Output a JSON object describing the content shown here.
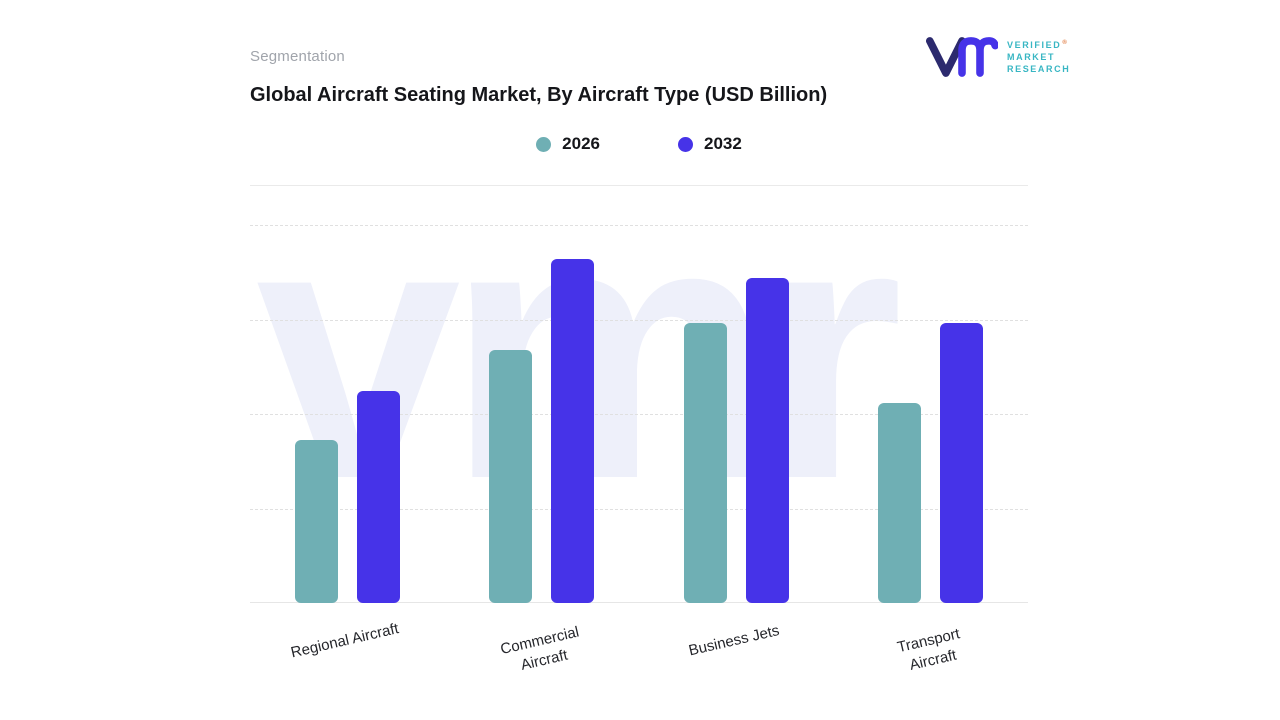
{
  "header": {
    "eyebrow": "Segmentation",
    "title": "Global Aircraft Seating Market, By Aircraft Type (USD Billion)"
  },
  "logo": {
    "mark": "vm-monogram",
    "lines": [
      "VERIFIED",
      "MARKET",
      "RESEARCH"
    ],
    "registered": "®",
    "teal": "#38b6c3",
    "navy": "#2c2a6e",
    "indigo": "#4633e8"
  },
  "legend": [
    {
      "label": "2026",
      "color": "#6fafb4"
    },
    {
      "label": "2032",
      "color": "#4633e8"
    }
  ],
  "watermark": "vmr",
  "chart_data": {
    "type": "bar",
    "title": "Global Aircraft Seating Market, By Aircraft Type (USD Billion)",
    "units": "USD Billion",
    "categories": [
      "Regional Aircraft",
      "Commercial Aircraft",
      "Business Jets",
      "Transport Aircraft"
    ],
    "tick_label_lines": [
      [
        "Regional Aircraft"
      ],
      [
        "Commercial",
        "Aircraft"
      ],
      [
        "Business Jets"
      ],
      [
        "Transport",
        "Aircraft"
      ]
    ],
    "series": [
      {
        "name": "2026",
        "color": "#6fafb4",
        "values": [
          4.3,
          6.7,
          7.4,
          5.3
        ]
      },
      {
        "name": "2032",
        "color": "#4633e8",
        "values": [
          5.6,
          9.1,
          8.6,
          7.4
        ]
      }
    ],
    "ylim": [
      0,
      10
    ],
    "gridlines_at": [
      2.5,
      5,
      7.5,
      10
    ],
    "grid": "horizontal-dashed",
    "legend_position": "top-center",
    "values_note": "no data labels shown; values estimated from bar heights"
  }
}
